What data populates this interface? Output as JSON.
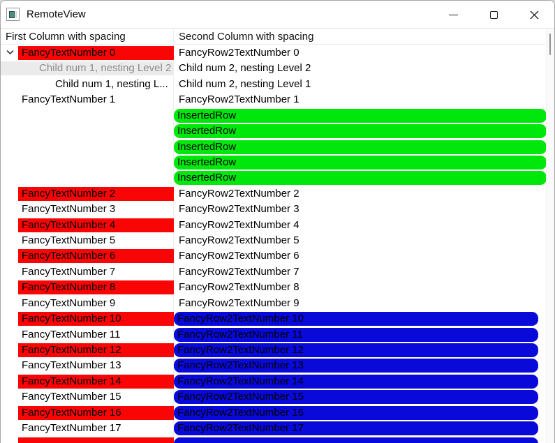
{
  "window": {
    "title": "RemoteView",
    "controls": {
      "minimize": "minimize",
      "maximize": "maximize",
      "close": "close"
    }
  },
  "colors": {
    "red": "#f90505",
    "green": "#00e70b",
    "blue": "#0909da",
    "muted_bg": "#ebebeb",
    "muted_text": "#8b8b8b"
  },
  "table": {
    "columns": [
      "First Column with spacing",
      "Second Column with spacing"
    ],
    "rows": [
      {
        "level": 0,
        "expander": true,
        "col1": "FancyTextNumber 0",
        "col1_style": "red",
        "col2": "FancyRow2TextNumber 0",
        "col2_style": "plain"
      },
      {
        "level": 1,
        "expander": true,
        "col1": "Child num 1, nesting Level 2",
        "col1_style": "muted",
        "col2": "Child num 2, nesting Level 2",
        "col2_style": "plain"
      },
      {
        "level": 2,
        "expander": false,
        "col1": "Child num 1, nesting L...",
        "col1_style": "plain",
        "col2": "Child num 2, nesting Level 1",
        "col2_style": "plain"
      },
      {
        "level": 0,
        "expander": false,
        "col1": "FancyTextNumber 1",
        "col1_style": "plain",
        "col2": "FancyRow2TextNumber 1",
        "col2_style": "plain"
      },
      {
        "level": 0,
        "expander": false,
        "col1": "",
        "col1_style": "empty",
        "col2": "InsertedRow",
        "col2_style": "green"
      },
      {
        "level": 0,
        "expander": false,
        "col1": "",
        "col1_style": "empty",
        "col2": "InsertedRow",
        "col2_style": "green"
      },
      {
        "level": 0,
        "expander": false,
        "col1": "",
        "col1_style": "empty",
        "col2": "InsertedRow",
        "col2_style": "green"
      },
      {
        "level": 0,
        "expander": false,
        "col1": "",
        "col1_style": "empty",
        "col2": "InsertedRow",
        "col2_style": "green"
      },
      {
        "level": 0,
        "expander": false,
        "col1": "",
        "col1_style": "empty",
        "col2": "InsertedRow",
        "col2_style": "green"
      },
      {
        "level": 0,
        "expander": false,
        "col1": "FancyTextNumber 2",
        "col1_style": "red",
        "col2": "FancyRow2TextNumber 2",
        "col2_style": "plain"
      },
      {
        "level": 0,
        "expander": false,
        "col1": "FancyTextNumber 3",
        "col1_style": "plain",
        "col2": "FancyRow2TextNumber 3",
        "col2_style": "plain"
      },
      {
        "level": 0,
        "expander": false,
        "col1": "FancyTextNumber 4",
        "col1_style": "red",
        "col2": "FancyRow2TextNumber 4",
        "col2_style": "plain"
      },
      {
        "level": 0,
        "expander": false,
        "col1": "FancyTextNumber 5",
        "col1_style": "plain",
        "col2": "FancyRow2TextNumber 5",
        "col2_style": "plain"
      },
      {
        "level": 0,
        "expander": false,
        "col1": "FancyTextNumber 6",
        "col1_style": "red",
        "col2": "FancyRow2TextNumber 6",
        "col2_style": "plain"
      },
      {
        "level": 0,
        "expander": false,
        "col1": "FancyTextNumber 7",
        "col1_style": "plain",
        "col2": "FancyRow2TextNumber 7",
        "col2_style": "plain"
      },
      {
        "level": 0,
        "expander": false,
        "col1": "FancyTextNumber 8",
        "col1_style": "red",
        "col2": "FancyRow2TextNumber 8",
        "col2_style": "plain"
      },
      {
        "level": 0,
        "expander": false,
        "col1": "FancyTextNumber 9",
        "col1_style": "plain",
        "col2": "FancyRow2TextNumber 9",
        "col2_style": "plain"
      },
      {
        "level": 0,
        "expander": false,
        "col1": "FancyTextNumber 10",
        "col1_style": "red",
        "col2": "FancyRow2TextNumber 10",
        "col2_style": "blue"
      },
      {
        "level": 0,
        "expander": false,
        "col1": "FancyTextNumber 11",
        "col1_style": "plain",
        "col2": "FancyRow2TextNumber 11",
        "col2_style": "blue"
      },
      {
        "level": 0,
        "expander": false,
        "col1": "FancyTextNumber 12",
        "col1_style": "red",
        "col2": "FancyRow2TextNumber 12",
        "col2_style": "blue"
      },
      {
        "level": 0,
        "expander": false,
        "col1": "FancyTextNumber 13",
        "col1_style": "plain",
        "col2": "FancyRow2TextNumber 13",
        "col2_style": "blue"
      },
      {
        "level": 0,
        "expander": false,
        "col1": "FancyTextNumber 14",
        "col1_style": "red",
        "col2": "FancyRow2TextNumber 14",
        "col2_style": "blue"
      },
      {
        "level": 0,
        "expander": false,
        "col1": "FancyTextNumber 15",
        "col1_style": "plain",
        "col2": "FancyRow2TextNumber 15",
        "col2_style": "blue"
      },
      {
        "level": 0,
        "expander": false,
        "col1": "FancyTextNumber 16",
        "col1_style": "red",
        "col2": "FancyRow2TextNumber 16",
        "col2_style": "blue"
      },
      {
        "level": 0,
        "expander": false,
        "col1": "FancyTextNumber 17",
        "col1_style": "plain",
        "col2": "FancyRow2TextNumber 17",
        "col2_style": "blue"
      },
      {
        "level": 0,
        "expander": false,
        "col1": "",
        "col1_style": "red",
        "col2": "",
        "col2_style": "blue"
      }
    ]
  }
}
